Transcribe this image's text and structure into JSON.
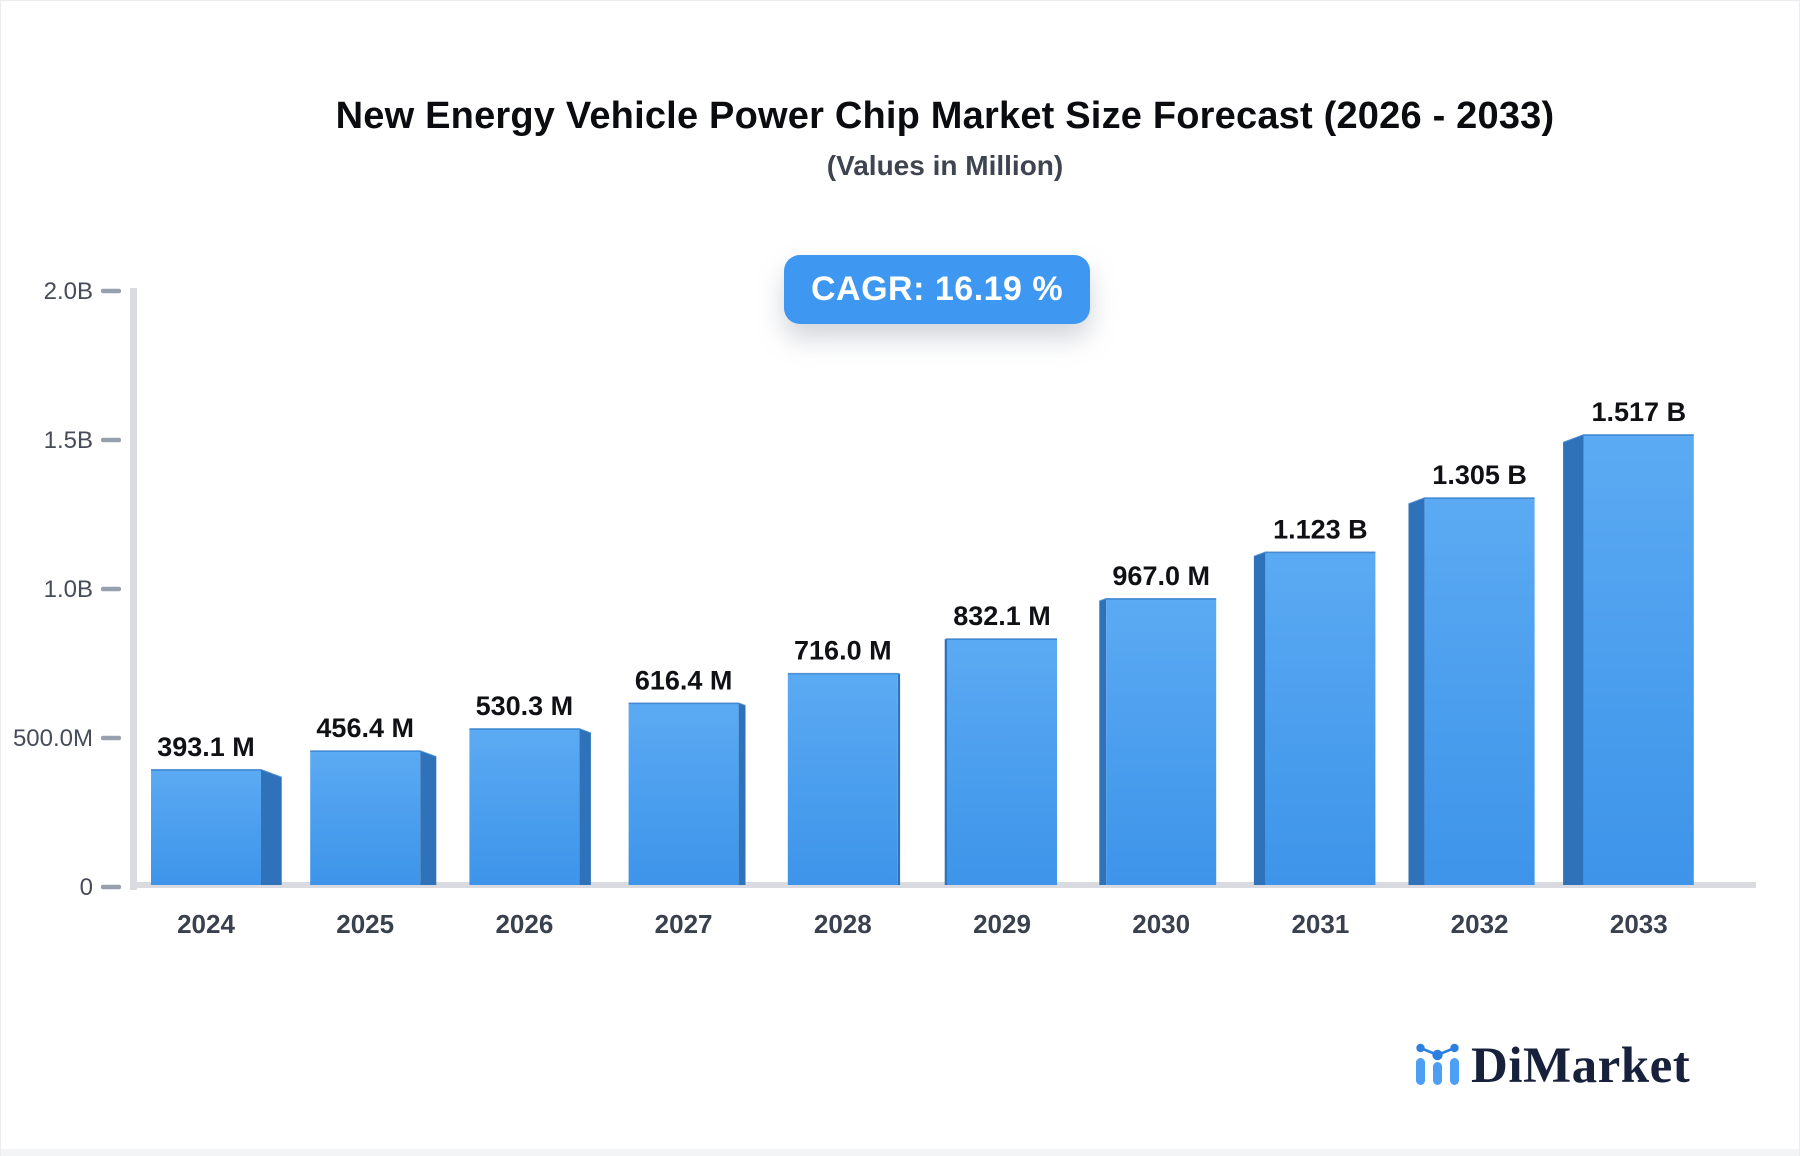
{
  "header": {
    "title": "New Energy Vehicle Power Chip Market Size Forecast (2026 - 2033)",
    "subtitle": "(Values in Million)",
    "cagr_badge": "CAGR: 16.19 %"
  },
  "chart_data": {
    "type": "bar",
    "title": "New Energy Vehicle Power Chip Market Size Forecast (2026 - 2033)",
    "subtitle": "(Values in Million)",
    "unit": "Million USD",
    "cagr_percent": 16.19,
    "style_3d": true,
    "grid": false,
    "legend": false,
    "xlabel": "",
    "ylabel": "",
    "categories": [
      "2024",
      "2025",
      "2026",
      "2027",
      "2028",
      "2029",
      "2030",
      "2031",
      "2032",
      "2033"
    ],
    "values_millions": [
      393.1,
      456.4,
      530.3,
      616.4,
      716.0,
      832.1,
      967.0,
      1123,
      1305,
      1517
    ],
    "value_labels": [
      "393.1 M",
      "456.4 M",
      "530.3 M",
      "616.4 M",
      "716.0 M",
      "832.1 M",
      "967.0 M",
      "1.123 B",
      "1.305 B",
      "1.517 B"
    ],
    "ylim_millions": [
      0,
      2000
    ],
    "y_ticks": [
      {
        "value_millions": 0,
        "label": "0"
      },
      {
        "value_millions": 500,
        "label": "500.0M"
      },
      {
        "value_millions": 1000,
        "label": "1.0B"
      },
      {
        "value_millions": 1500,
        "label": "1.5B"
      },
      {
        "value_millions": 2000,
        "label": "2.0B"
      }
    ],
    "colors": {
      "bar_front_top": "#5BAAF3",
      "bar_front_bottom": "#3D94E9",
      "bar_side": "#2F72B9",
      "bar_edge": "#2B77C6",
      "axis_line": "#D9DBE0",
      "tick_mark": "#97A0AC",
      "axis_label": "#464C58",
      "category_label": "#3A414E",
      "value_label": "#101114",
      "badge_bg": "#3E97F0",
      "badge_text": "#FFFFFF",
      "logo_bar_blue": "#4C9FF3",
      "logo_dot_blue": "#2E7FE2",
      "logo_text_color": "#17213B"
    }
  },
  "footer": {
    "logo_text": "DiMarket"
  }
}
